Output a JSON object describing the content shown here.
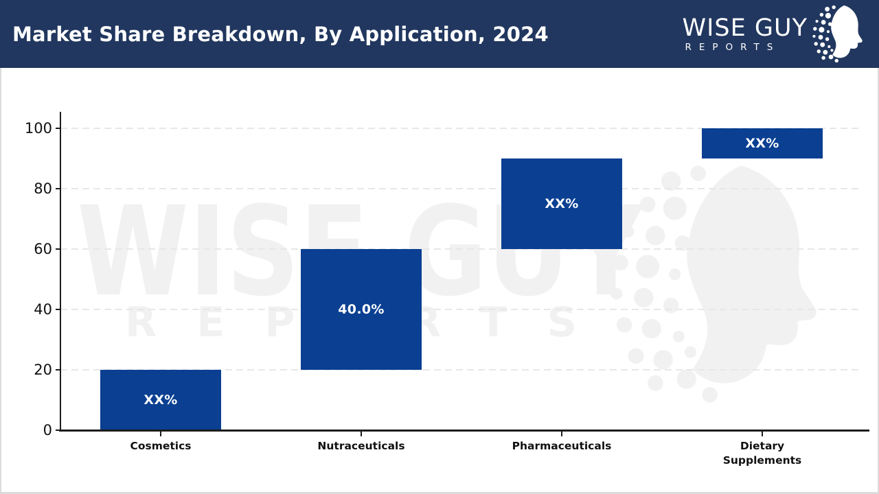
{
  "header": {
    "title": "Market Share Breakdown, By Application, 2024",
    "logo": {
      "line1": "WISE GUY",
      "line2": "REPORTS",
      "face_icon": "dot-face-profile"
    }
  },
  "watermark": {
    "line1": "WISE GUY",
    "line2": "REPORTS",
    "face_icon": "dot-face-profile"
  },
  "colors": {
    "header_bg": "#21375f",
    "title_text": "#ffffff",
    "bar": "#0a3f92",
    "bar_label": "#ffffff",
    "grid": "#e7e7e7",
    "axis": "#1c1c1c",
    "tick_label": "#111111",
    "watermark": "#f1f1f1",
    "page_bg": "#ffffff"
  },
  "chart_data": {
    "type": "bar",
    "subtype": "waterfall",
    "title": "Market Share Breakdown, By Application, 2024",
    "categories": [
      "Cosmetics",
      "Nutraceuticals",
      "Pharmaceuticals",
      "Dietary Supplements"
    ],
    "x_label_lines": [
      [
        "Cosmetics"
      ],
      [
        "Nutraceuticals"
      ],
      [
        "Pharmaceuticals"
      ],
      [
        "Dietary",
        "Supplements"
      ]
    ],
    "segments": [
      {
        "category": "Cosmetics",
        "start": 0,
        "end": 20,
        "value_label": "XX%"
      },
      {
        "category": "Nutraceuticals",
        "start": 20,
        "end": 60,
        "value_label": "40.0%"
      },
      {
        "category": "Pharmaceuticals",
        "start": 60,
        "end": 90,
        "value_label": "XX%"
      },
      {
        "category": "Dietary Supplements",
        "start": 90,
        "end": 100,
        "value_label": "XX%"
      }
    ],
    "yticks": [
      0,
      20,
      40,
      60,
      80,
      100
    ],
    "ylim": [
      0,
      105.5
    ],
    "xlabel": "",
    "ylabel": "",
    "grid": "horizontal-dashed",
    "legend": "none",
    "bar_color": "#0a3f92"
  }
}
